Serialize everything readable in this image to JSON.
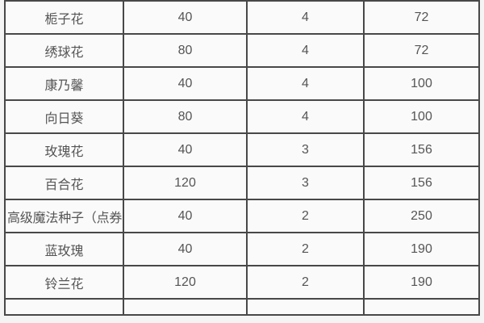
{
  "colors": {
    "border": "#484848",
    "text": "#555555",
    "cell_background": "#fafafa",
    "page_background": "#f4f4f4"
  },
  "table": {
    "rows": [
      [
        "栀子花",
        "40",
        "4",
        "72"
      ],
      [
        "绣球花",
        "80",
        "4",
        "72"
      ],
      [
        "康乃馨",
        "40",
        "4",
        "100"
      ],
      [
        "向日葵",
        "80",
        "4",
        "100"
      ],
      [
        "玫瑰花",
        "40",
        "3",
        "156"
      ],
      [
        "百合花",
        "120",
        "3",
        "156"
      ],
      [
        "高级魔法种子（点券）",
        "40",
        "2",
        "250"
      ],
      [
        "蓝玫瑰",
        "40",
        "2",
        "190"
      ],
      [
        "铃兰花",
        "120",
        "2",
        "190"
      ]
    ]
  },
  "chart_data": {
    "type": "table",
    "rows": [
      [
        "栀子花",
        40,
        4,
        72
      ],
      [
        "绣球花",
        80,
        4,
        72
      ],
      [
        "康乃馨",
        40,
        4,
        100
      ],
      [
        "向日葵",
        80,
        4,
        100
      ],
      [
        "玫瑰花",
        40,
        3,
        156
      ],
      [
        "百合花",
        120,
        3,
        156
      ],
      [
        "高级魔法种子（点券）",
        40,
        2,
        250
      ],
      [
        "蓝玫瑰",
        40,
        2,
        190
      ],
      [
        "铃兰花",
        120,
        2,
        190
      ]
    ]
  }
}
